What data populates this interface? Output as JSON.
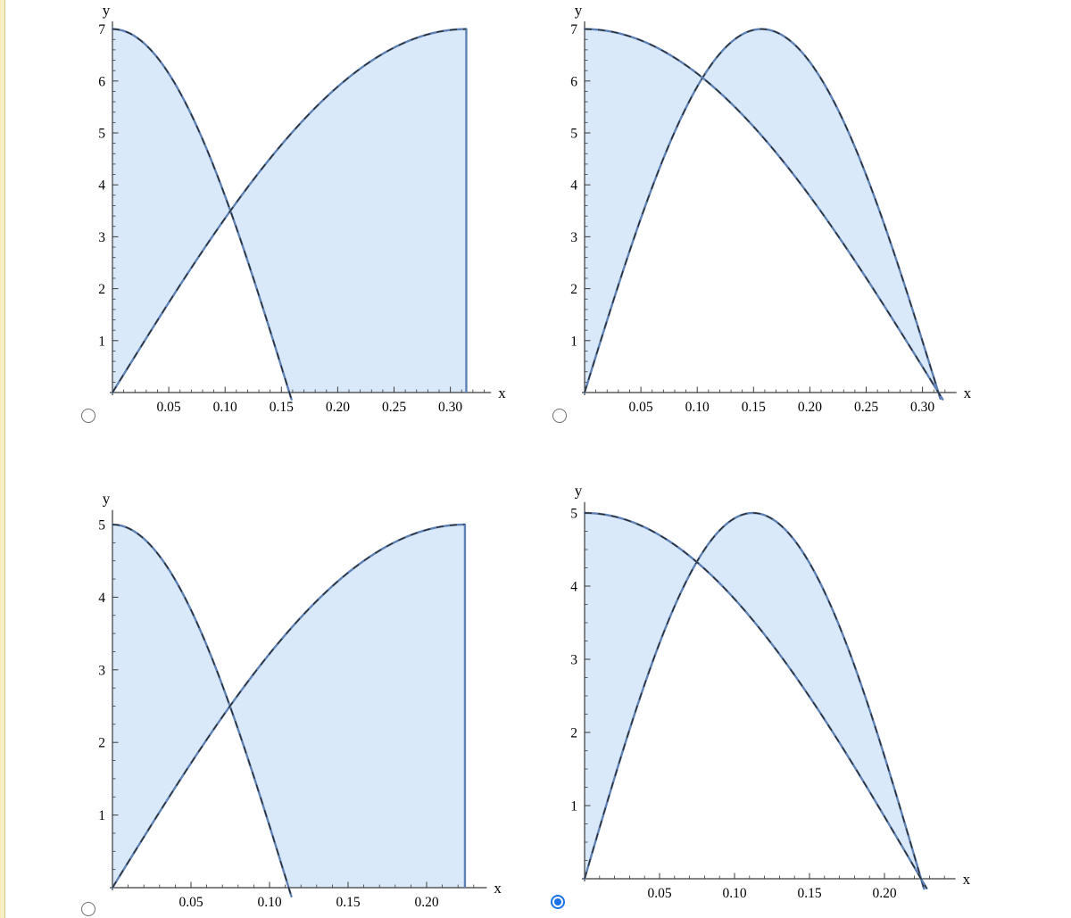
{
  "page": {
    "background": "#ffffff",
    "left_strip_color": "#f7efc4",
    "left_strip_border": "#d8c98c"
  },
  "options": [
    {
      "id": "option-a",
      "selected": false
    },
    {
      "id": "option-b",
      "selected": false
    },
    {
      "id": "option-c",
      "selected": false
    },
    {
      "id": "option-d",
      "selected": true
    }
  ],
  "chart_data": [
    {
      "option": "A",
      "type": "area",
      "description": "Shaded region between a falling curve from (0,7) (zero near x=0.157) and a rising curve from (0,0) to (0.314,7); both lobes between the curves shaded, clipped at y=0, vertical right edge at x=0.314.",
      "xlabel": "x",
      "ylabel": "y",
      "xlim": [
        0,
        0.333
      ],
      "ylim": [
        0,
        7.15
      ],
      "xticks": {
        "values": [
          0.05,
          0.1,
          0.15,
          0.2,
          0.25,
          0.3
        ],
        "labels": [
          "0.05",
          "0.10",
          "0.15",
          "0.20",
          "0.25",
          "0.30"
        ],
        "minor_step": 0.01
      },
      "yticks": {
        "values": [
          1,
          2,
          3,
          4,
          5,
          6,
          7
        ],
        "labels": [
          "1",
          "2",
          "3",
          "4",
          "5",
          "6",
          "7"
        ],
        "minor_step": 0.2
      },
      "domain_end": 0.3141593,
      "curves": [
        {
          "name": "falling-curve",
          "fn": "cos",
          "amplitude": 7,
          "frequency": 10,
          "clip": "tail"
        },
        {
          "name": "rising-curve",
          "fn": "sin",
          "amplitude": 7,
          "frequency": 5,
          "clip": "domain"
        }
      ],
      "intersection": {
        "x": 0.105,
        "y": 3.5
      },
      "right_edge_vertical": true,
      "fill_color": "#d9e9f9",
      "line_color": "#5e81b5",
      "dash_color": "#2b2b2b"
    },
    {
      "option": "B",
      "type": "area",
      "description": "Shaded region between an arch curve rising from (0,0) to peak (0.157,7) then falling, and a falling curve from (0,7); both curves meet the x-axis near x=0.314; both lobes shaded.",
      "xlabel": "x",
      "ylabel": "y",
      "xlim": [
        0,
        0.327
      ],
      "ylim": [
        0,
        7.15
      ],
      "xticks": {
        "values": [
          0.05,
          0.1,
          0.15,
          0.2,
          0.25,
          0.3
        ],
        "labels": [
          "0.05",
          "0.10",
          "0.15",
          "0.20",
          "0.25",
          "0.30"
        ],
        "minor_step": 0.01
      },
      "yticks": {
        "values": [
          1,
          2,
          3,
          4,
          5,
          6,
          7
        ],
        "labels": [
          "1",
          "2",
          "3",
          "4",
          "5",
          "6",
          "7"
        ],
        "minor_step": 0.2
      },
      "domain_end": 0.3141593,
      "curves": [
        {
          "name": "arch-curve",
          "fn": "sin",
          "amplitude": 7,
          "frequency": 10,
          "clip": "tail"
        },
        {
          "name": "falling-curve",
          "fn": "cos",
          "amplitude": 7,
          "frequency": 5,
          "clip": "tail"
        }
      ],
      "intersection": {
        "x": 0.105,
        "y": 6.06
      },
      "right_edge_vertical": false,
      "fill_color": "#d9e9f9",
      "line_color": "#5e81b5",
      "dash_color": "#2b2b2b"
    },
    {
      "option": "C",
      "type": "area",
      "description": "Shaded region between a falling curve from (0,5) (zero near x=0.112) and a rising curve from (0,0) to (0.224,5); both lobes shaded, clipped at y=0, vertical right edge at x=0.224.",
      "xlabel": "x",
      "ylabel": "y",
      "xlim": [
        0,
        0.236
      ],
      "ylim": [
        0,
        5.2
      ],
      "xticks": {
        "values": [
          0.05,
          0.1,
          0.15,
          0.2
        ],
        "labels": [
          "0.05",
          "0.10",
          "0.15",
          "0.20"
        ],
        "minor_step": 0.01
      },
      "yticks": {
        "values": [
          1,
          2,
          3,
          4,
          5
        ],
        "labels": [
          "1",
          "2",
          "3",
          "4",
          "5"
        ],
        "minor_step": 0.25
      },
      "domain_end": 0.2243995,
      "curves": [
        {
          "name": "falling-curve",
          "fn": "cos",
          "amplitude": 5,
          "frequency": 14,
          "clip": "tail"
        },
        {
          "name": "rising-curve",
          "fn": "sin",
          "amplitude": 5,
          "frequency": 7,
          "clip": "domain"
        }
      ],
      "intersection": {
        "x": 0.075,
        "y": 2.5
      },
      "right_edge_vertical": true,
      "fill_color": "#d9e9f9",
      "line_color": "#5e81b5",
      "dash_color": "#2b2b2b"
    },
    {
      "option": "D",
      "type": "area",
      "description": "Shaded region between an arch curve rising from (0,0) to peak (0.112,5) then falling, and a falling curve from (0,5); both curves meet the x-axis near x=0.224; both lobes shaded.",
      "xlabel": "x",
      "ylabel": "y",
      "xlim": [
        0,
        0.245
      ],
      "ylim": [
        0,
        5.15
      ],
      "xticks": {
        "values": [
          0.05,
          0.1,
          0.15,
          0.2
        ],
        "labels": [
          "0.05",
          "0.10",
          "0.15",
          "0.20"
        ],
        "minor_step": 0.01
      },
      "yticks": {
        "values": [
          1,
          2,
          3,
          4,
          5
        ],
        "labels": [
          "1",
          "2",
          "3",
          "4",
          "5"
        ],
        "minor_step": 0.25
      },
      "domain_end": 0.2243995,
      "curves": [
        {
          "name": "arch-curve",
          "fn": "sin",
          "amplitude": 5,
          "frequency": 14,
          "clip": "tail"
        },
        {
          "name": "falling-curve",
          "fn": "cos",
          "amplitude": 5,
          "frequency": 7,
          "clip": "tail"
        }
      ],
      "intersection": {
        "x": 0.075,
        "y": 4.33
      },
      "right_edge_vertical": false,
      "fill_color": "#d9e9f9",
      "line_color": "#5e81b5",
      "dash_color": "#2b2b2b"
    }
  ]
}
